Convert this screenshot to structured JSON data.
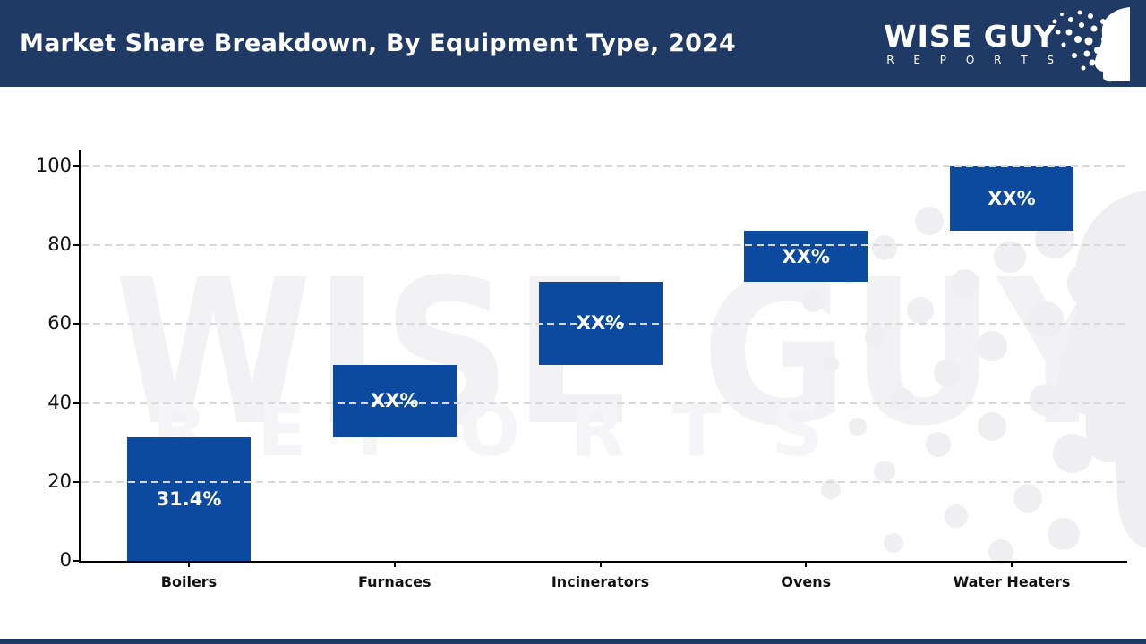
{
  "header": {
    "title": "Market Share Breakdown, By Equipment Type, 2024",
    "logo": {
      "line1": "WISE GUY",
      "line2": "R E P O R T S"
    }
  },
  "watermark": {
    "line1": "WISE GUY",
    "line2": "REPORTS"
  },
  "chart_data": {
    "type": "bar",
    "variant": "floating-waterfall",
    "title": "Market Share Breakdown, By Equipment Type, 2024",
    "categories": [
      "Boilers",
      "Furnaces",
      "Incinerators",
      "Ovens",
      "Water Heaters"
    ],
    "segments": [
      {
        "category": "Boilers",
        "start": 0,
        "end": 31.4,
        "label": "31.4%"
      },
      {
        "category": "Furnaces",
        "start": 31.4,
        "end": 49.7,
        "label": "XX%"
      },
      {
        "category": "Incinerators",
        "start": 49.7,
        "end": 70.8,
        "label": "XX%"
      },
      {
        "category": "Ovens",
        "start": 70.8,
        "end": 83.6,
        "label": "XX%"
      },
      {
        "category": "Water Heaters",
        "start": 83.6,
        "end": 100,
        "label": "XX%"
      }
    ],
    "xlabel": "",
    "ylabel": "",
    "ylim": [
      0,
      100
    ],
    "yticks": [
      0,
      20,
      40,
      60,
      80,
      100
    ],
    "grid": "horizontal-dashed",
    "legend": "none",
    "bar_color": "#0b4a9e",
    "bar_label_color": "#ffffff"
  },
  "colors": {
    "header_bg": "#203a66",
    "footer_bg": "#203a66",
    "bar": "#0b4a9e",
    "grid": "#d9d9d9",
    "axis": "#000000",
    "watermark": "#f2f2f5"
  }
}
